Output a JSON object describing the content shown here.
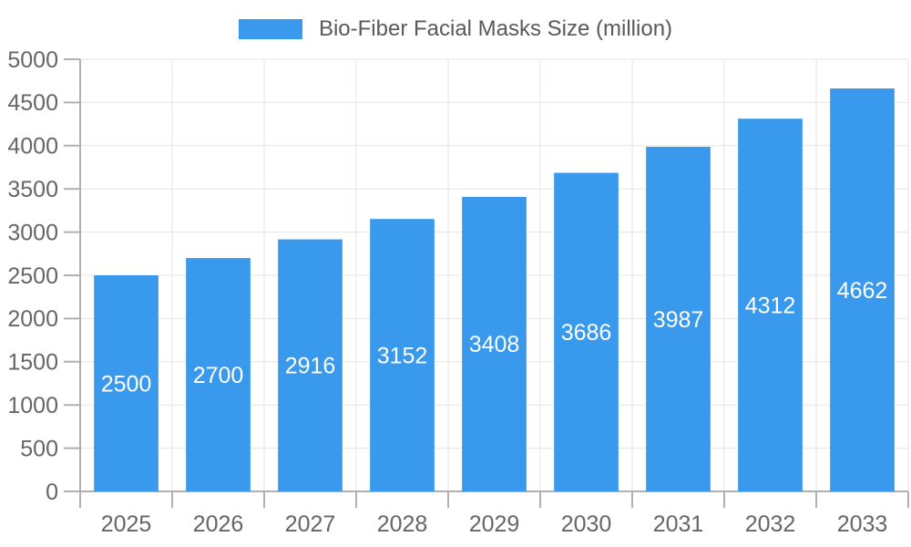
{
  "legend": {
    "label": "Bio-Fiber Facial Masks Size (million)"
  },
  "chart_data": {
    "type": "bar",
    "title": "Bio-Fiber Facial Masks Size (million)",
    "categories": [
      "2025",
      "2026",
      "2027",
      "2028",
      "2029",
      "2030",
      "2031",
      "2032",
      "2033"
    ],
    "values": [
      2500,
      2700,
      2916,
      3152,
      3408,
      3686,
      3987,
      4312,
      4662
    ],
    "xlabel": "",
    "ylabel": "",
    "ylim": [
      0,
      5000
    ],
    "ytick_step": 500,
    "ytick_labels": [
      "0",
      "500",
      "1000",
      "1500",
      "2000",
      "2500",
      "3000",
      "3500",
      "4000",
      "4500",
      "5000"
    ],
    "grid": true,
    "legend_position": "top",
    "bar_label_position": "inside-center",
    "colors": {
      "bar": "#3999EC",
      "bar_label": "#ffffff",
      "axis": "#b0b0b0",
      "grid": "#e5e5e5",
      "tick_label": "#666666",
      "legend_text": "#595959",
      "background": "#ffffff"
    }
  }
}
